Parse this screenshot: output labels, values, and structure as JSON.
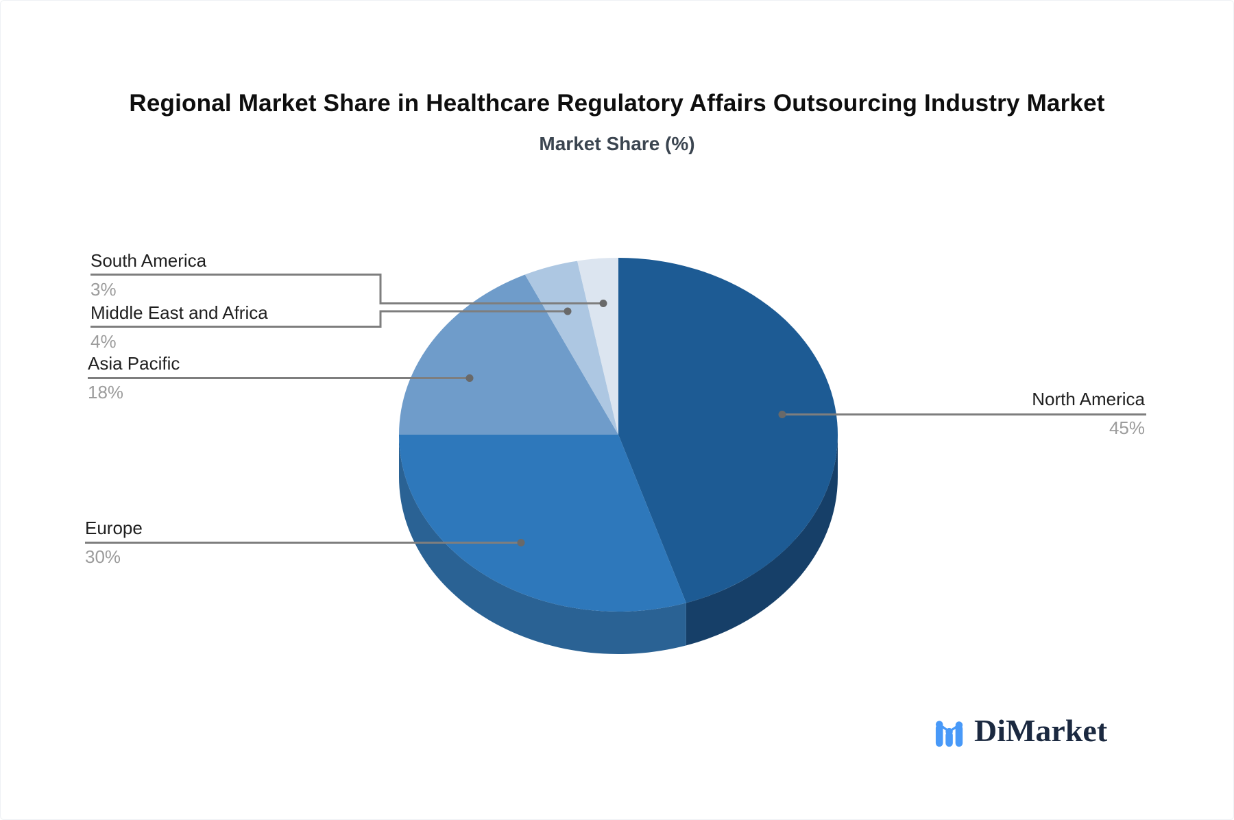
{
  "title": "Regional Market Share in Healthcare Regulatory Affairs Outsourcing Industry Market",
  "subtitle": "Market Share (%)",
  "logo": {
    "text": "DiMarket",
    "icon": "bar-line-chart-icon",
    "icon_color": "#4899f8",
    "text_color": "#1b2940"
  },
  "chart_data": {
    "type": "pie",
    "title": "Regional Market Share in Healthcare Regulatory Affairs Outsourcing Industry Market",
    "subtitle": "Market Share (%)",
    "unit": "%",
    "direction": "clockwise",
    "start_angle_deg": 0,
    "effect": "3d-depth",
    "legend_position": "callout-labels",
    "labels": [
      "North America",
      "Europe",
      "Asia Pacific",
      "Middle East and Africa",
      "South America"
    ],
    "values": [
      45,
      30,
      18,
      4,
      3
    ],
    "display_values": [
      "45%",
      "30%",
      "18%",
      "4%",
      "3%"
    ],
    "colors": [
      "#1d5b94",
      "#2e78bb",
      "#6f9cca",
      "#adc7e2",
      "#dce5f0"
    ],
    "side_colors": [
      "#163f68",
      "#2a6294",
      "#6f9cca",
      "#adc7e2",
      "#dce5f0"
    ],
    "callout_line_color": "#7e7e7e",
    "callout_dot_color": "#696969"
  }
}
